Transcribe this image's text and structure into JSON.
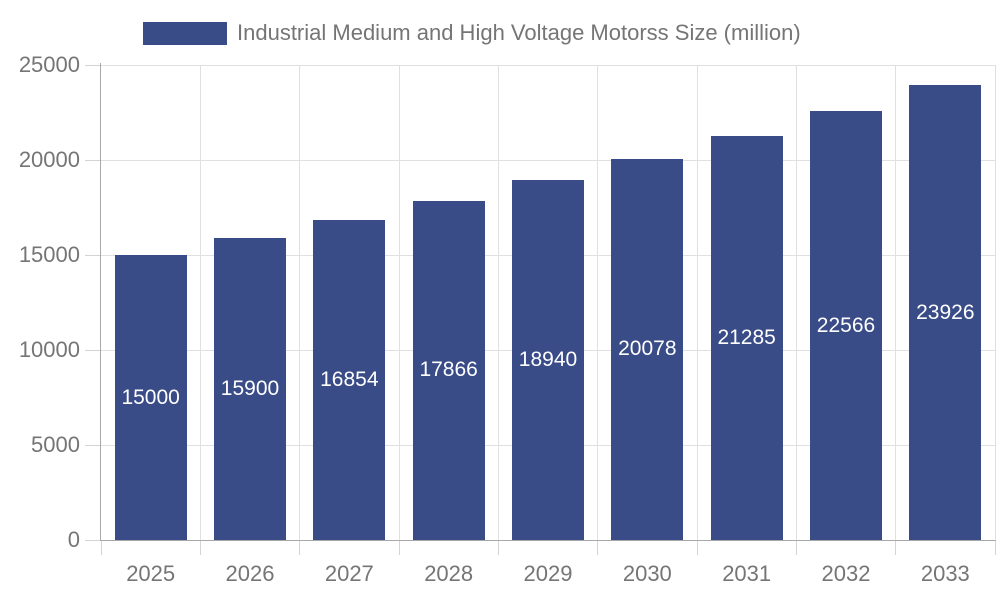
{
  "chart_data": {
    "type": "bar",
    "title": "Industrial Medium and High Voltage Motorss Size (million)",
    "categories": [
      "2025",
      "2026",
      "2027",
      "2028",
      "2029",
      "2030",
      "2031",
      "2032",
      "2033"
    ],
    "values": [
      15000,
      15900,
      16854,
      17866,
      18940,
      20078,
      21285,
      22566,
      23926
    ],
    "xlabel": "",
    "ylabel": "",
    "ylim": [
      0,
      25000
    ],
    "yticks": [
      0,
      5000,
      10000,
      15000,
      20000,
      25000
    ],
    "grid": true,
    "legend": {
      "position": "top",
      "label": "Industrial Medium and High Voltage Motorss Size (million)"
    },
    "colors": {
      "bar": "#3a4c88",
      "value_label": "#ffffff",
      "grid": "#e0e0e0",
      "axis": "#a8a8a8",
      "tick": "#d4d4d4",
      "text": "#757575"
    }
  }
}
